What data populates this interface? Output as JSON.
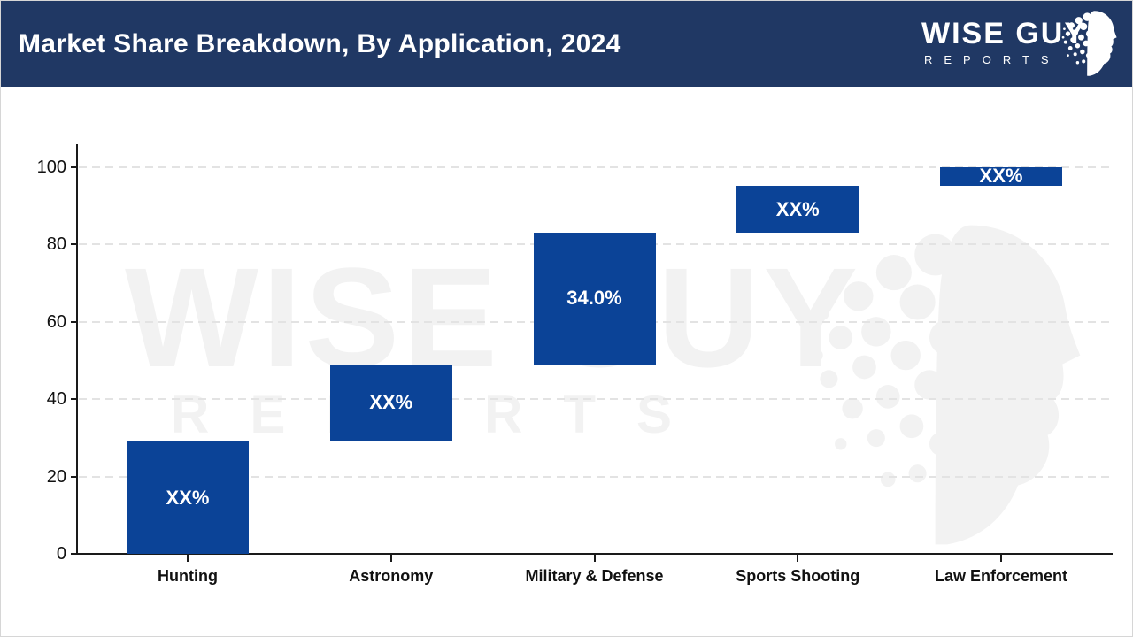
{
  "header": {
    "title": "Market Share Breakdown, By Application, 2024",
    "logo": {
      "primary": "WISE GUY",
      "secondary": "REPORTS"
    }
  },
  "watermark": {
    "primary": "WISE GUY",
    "secondary": "REPORTS"
  },
  "colors": {
    "header_bg": "#203864",
    "bar": "#0b4397",
    "bar_label": "#ffffff",
    "axis": "#1a1a1a",
    "grid": "#e3e3e3",
    "tick_text": "#111111",
    "watermark": "#f2f2f2",
    "page_border": "#d6d6d6"
  },
  "chart_data": {
    "type": "bar",
    "subtype": "waterfall",
    "title": "Market Share Breakdown, By Application, 2024",
    "xlabel": "",
    "ylabel": "",
    "ylim": [
      0,
      105
    ],
    "yticks": [
      0,
      20,
      40,
      60,
      80,
      100
    ],
    "grid": "horizontal-dashed",
    "legend": "none",
    "categories": [
      "Hunting",
      "Astronomy",
      "Military & Defense",
      "Sports Shooting",
      "Law Enforcement"
    ],
    "segments": [
      {
        "category": "Hunting",
        "start": 0,
        "end": 29,
        "value": 29,
        "value_label": "XX%"
      },
      {
        "category": "Astronomy",
        "start": 29,
        "end": 49,
        "value": 20,
        "value_label": "XX%"
      },
      {
        "category": "Military & Defense",
        "start": 49,
        "end": 83,
        "value": 34,
        "value_label": "34.0%"
      },
      {
        "category": "Sports Shooting",
        "start": 83,
        "end": 95,
        "value": 12,
        "value_label": "XX%"
      },
      {
        "category": "Law Enforcement",
        "start": 95,
        "end": 100,
        "value": 5,
        "value_label": "XX%"
      }
    ]
  }
}
